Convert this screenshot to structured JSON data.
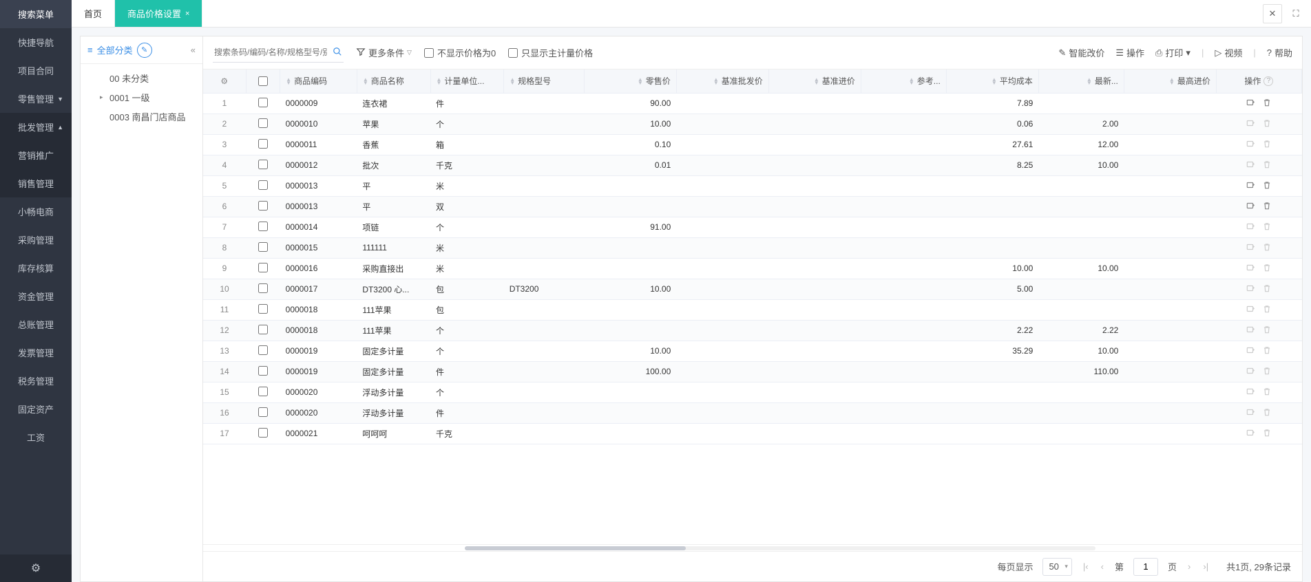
{
  "sidebar": {
    "items": [
      {
        "label": "搜索菜单"
      },
      {
        "label": "快捷导航"
      },
      {
        "label": "项目合同"
      },
      {
        "label": "零售管理",
        "caret": "▼"
      },
      {
        "label": "批发管理",
        "caret": "▲",
        "expanded": true,
        "children": [
          {
            "label": "营销推广"
          },
          {
            "label": "销售管理"
          }
        ]
      },
      {
        "label": "小畅电商"
      },
      {
        "label": "采购管理"
      },
      {
        "label": "库存核算"
      },
      {
        "label": "资金管理"
      },
      {
        "label": "总账管理"
      },
      {
        "label": "发票管理"
      },
      {
        "label": "税务管理"
      },
      {
        "label": "固定资产"
      },
      {
        "label": "工资"
      }
    ]
  },
  "tabs": {
    "home": "首页",
    "active": "商品价格设置",
    "close": "×"
  },
  "tree": {
    "title": "全部分类",
    "nodes": [
      {
        "label": "00 未分类",
        "caret": ""
      },
      {
        "label": "0001 一级",
        "caret": "▸"
      },
      {
        "label": "0003 南昌门店商品",
        "caret": ""
      }
    ]
  },
  "toolbar": {
    "search_placeholder": "搜索条码/编码/名称/规格型号/别名",
    "more": "更多条件",
    "chk1": "不显示价格为0",
    "chk2": "只显示主计量价格",
    "smart": "智能改价",
    "op": "操作",
    "print": "打印",
    "video": "视频",
    "help": "帮助"
  },
  "table": {
    "columns": [
      "",
      "",
      "商品编码",
      "商品名称",
      "计量单位...",
      "规格型号",
      "零售价",
      "基准批发价",
      "基准进价",
      "参考...",
      "平均成本",
      "最新...",
      "最高进价",
      "操作"
    ],
    "op_header_icon": "?",
    "gear_icon": "⚙",
    "rows": [
      {
        "idx": "1",
        "code": "0000009",
        "name": "连衣裙",
        "unit": "件",
        "spec": "",
        "retail": "90.00",
        "whole": "",
        "pur": "",
        "ref": "",
        "avg": "7.89",
        "latest": "",
        "max": "",
        "enabled": true
      },
      {
        "idx": "2",
        "code": "0000010",
        "name": "苹果",
        "unit": "个",
        "spec": "",
        "retail": "10.00",
        "whole": "",
        "pur": "",
        "ref": "",
        "avg": "0.06",
        "latest": "2.00",
        "max": "",
        "enabled": false
      },
      {
        "idx": "3",
        "code": "0000011",
        "name": "香蕉",
        "unit": "箱",
        "spec": "",
        "retail": "0.10",
        "whole": "",
        "pur": "",
        "ref": "",
        "avg": "27.61",
        "latest": "12.00",
        "max": "",
        "enabled": false
      },
      {
        "idx": "4",
        "code": "0000012",
        "name": "批次",
        "unit": "千克",
        "spec": "",
        "retail": "0.01",
        "whole": "",
        "pur": "",
        "ref": "",
        "avg": "8.25",
        "latest": "10.00",
        "max": "",
        "enabled": false
      },
      {
        "idx": "5",
        "code": "0000013",
        "name": "平",
        "unit": "米",
        "spec": "",
        "retail": "",
        "whole": "",
        "pur": "",
        "ref": "",
        "avg": "",
        "latest": "",
        "max": "",
        "enabled": true
      },
      {
        "idx": "6",
        "code": "0000013",
        "name": "平",
        "unit": "双",
        "spec": "",
        "retail": "",
        "whole": "",
        "pur": "",
        "ref": "",
        "avg": "",
        "latest": "",
        "max": "",
        "enabled": true
      },
      {
        "idx": "7",
        "code": "0000014",
        "name": "项链",
        "unit": "个",
        "spec": "",
        "retail": "91.00",
        "whole": "",
        "pur": "",
        "ref": "",
        "avg": "",
        "latest": "",
        "max": "",
        "enabled": false
      },
      {
        "idx": "8",
        "code": "0000015",
        "name": "111111",
        "unit": "米",
        "spec": "",
        "retail": "",
        "whole": "",
        "pur": "",
        "ref": "",
        "avg": "",
        "latest": "",
        "max": "",
        "enabled": false
      },
      {
        "idx": "9",
        "code": "0000016",
        "name": "采购直接出",
        "unit": "米",
        "spec": "",
        "retail": "",
        "whole": "",
        "pur": "",
        "ref": "",
        "avg": "10.00",
        "latest": "10.00",
        "max": "",
        "enabled": false
      },
      {
        "idx": "10",
        "code": "0000017",
        "name": "DT3200 心...",
        "unit": "包",
        "spec": "DT3200",
        "retail": "10.00",
        "whole": "",
        "pur": "",
        "ref": "",
        "avg": "5.00",
        "latest": "",
        "max": "",
        "enabled": false
      },
      {
        "idx": "11",
        "code": "0000018",
        "name": "111苹果",
        "unit": "包",
        "spec": "",
        "retail": "",
        "whole": "",
        "pur": "",
        "ref": "",
        "avg": "",
        "latest": "",
        "max": "",
        "enabled": false
      },
      {
        "idx": "12",
        "code": "0000018",
        "name": "111苹果",
        "unit": "个",
        "spec": "",
        "retail": "",
        "whole": "",
        "pur": "",
        "ref": "",
        "avg": "2.22",
        "latest": "2.22",
        "max": "",
        "enabled": false
      },
      {
        "idx": "13",
        "code": "0000019",
        "name": "固定多计量",
        "unit": "个",
        "spec": "",
        "retail": "10.00",
        "whole": "",
        "pur": "",
        "ref": "",
        "avg": "35.29",
        "latest": "10.00",
        "max": "",
        "enabled": false
      },
      {
        "idx": "14",
        "code": "0000019",
        "name": "固定多计量",
        "unit": "件",
        "spec": "",
        "retail": "100.00",
        "whole": "",
        "pur": "",
        "ref": "",
        "avg": "",
        "latest": "110.00",
        "max": "",
        "enabled": false
      },
      {
        "idx": "15",
        "code": "0000020",
        "name": "浮动多计量",
        "unit": "个",
        "spec": "",
        "retail": "",
        "whole": "",
        "pur": "",
        "ref": "",
        "avg": "",
        "latest": "",
        "max": "",
        "enabled": false
      },
      {
        "idx": "16",
        "code": "0000020",
        "name": "浮动多计量",
        "unit": "件",
        "spec": "",
        "retail": "",
        "whole": "",
        "pur": "",
        "ref": "",
        "avg": "",
        "latest": "",
        "max": "",
        "enabled": false
      },
      {
        "idx": "17",
        "code": "0000021",
        "name": "呵呵呵",
        "unit": "千克",
        "spec": "",
        "retail": "",
        "whole": "",
        "pur": "",
        "ref": "",
        "avg": "",
        "latest": "",
        "max": "",
        "enabled": false
      }
    ]
  },
  "footer": {
    "per_page_label": "每页显示",
    "per_page_value": "50",
    "page_prefix": "第",
    "page_value": "1",
    "page_suffix": "页",
    "summary": "共1页, 29条记录"
  },
  "colors": {
    "sidebar_bg": "#2f3541",
    "accent": "#20c1aa",
    "link": "#3a8ee6",
    "border": "#e6e6e6"
  }
}
